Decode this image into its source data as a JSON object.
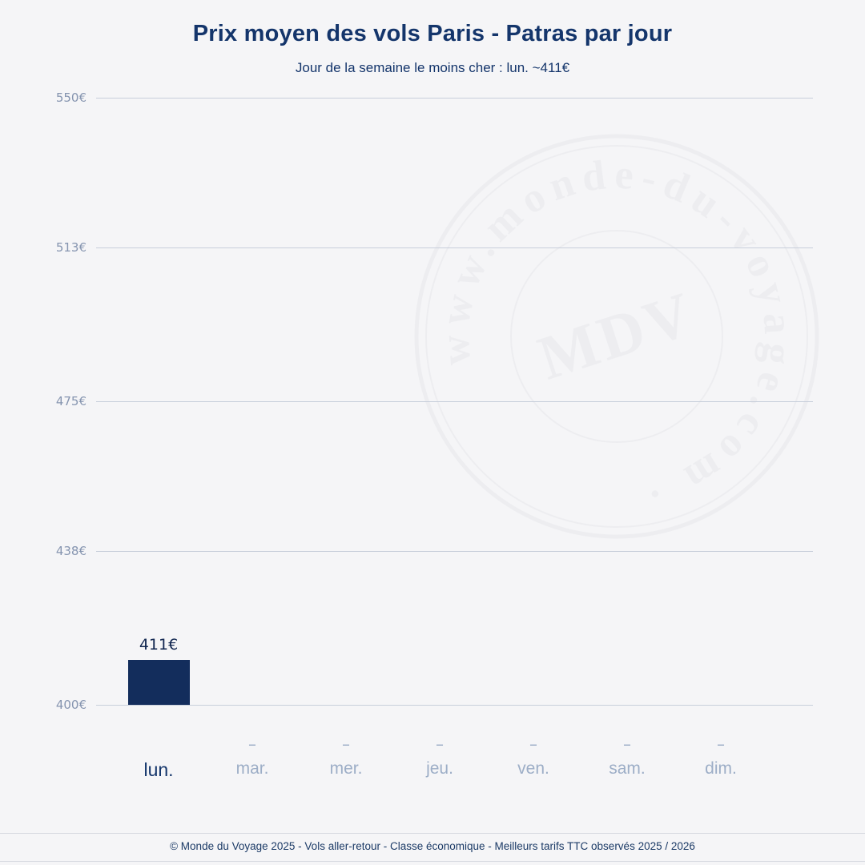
{
  "header": {
    "title": "Prix moyen des vols Paris - Patras par jour",
    "subtitle": "Jour de la semaine le moins cher : lun. ~411€"
  },
  "chart_data": {
    "type": "bar",
    "title": "Prix moyen des vols Paris - Patras par jour",
    "subtitle": "Jour de la semaine le moins cher : lun. ~411€",
    "categories": [
      "lun.",
      "mar.",
      "mer.",
      "jeu.",
      "ven.",
      "sam.",
      "dim."
    ],
    "values": [
      411,
      null,
      null,
      null,
      null,
      null,
      null
    ],
    "value_labels": [
      "411€",
      "–",
      "–",
      "–",
      "–",
      "–",
      "–"
    ],
    "highlight_category": "lun.",
    "xlabel": "",
    "ylabel": "",
    "ylim": [
      400,
      550
    ],
    "yticks": [
      550,
      513,
      475,
      438,
      400
    ],
    "ytick_labels": [
      "550€",
      "513€",
      "475€",
      "438€",
      "400€"
    ],
    "grid": true,
    "legend": "none",
    "no_data_marker": "–"
  },
  "watermark": {
    "circle_text": "www.monde-du-voyage.com · ",
    "center_text": "MDV"
  },
  "footer": {
    "text": "© Monde du Voyage 2025 - Vols aller-retour - Classe économique - Meilleurs tarifs TTC observés 2025 / 2026"
  },
  "colors": {
    "background": "#f5f5f7",
    "title": "#14356b",
    "bar": "#132d5c",
    "grid": "#c8cfdb",
    "tick_label": "#8695b0",
    "day_active": "#14356b",
    "day_inactive": "#9daec7",
    "footer_text": "#1b3a66",
    "watermark": "#e7e8ec"
  }
}
